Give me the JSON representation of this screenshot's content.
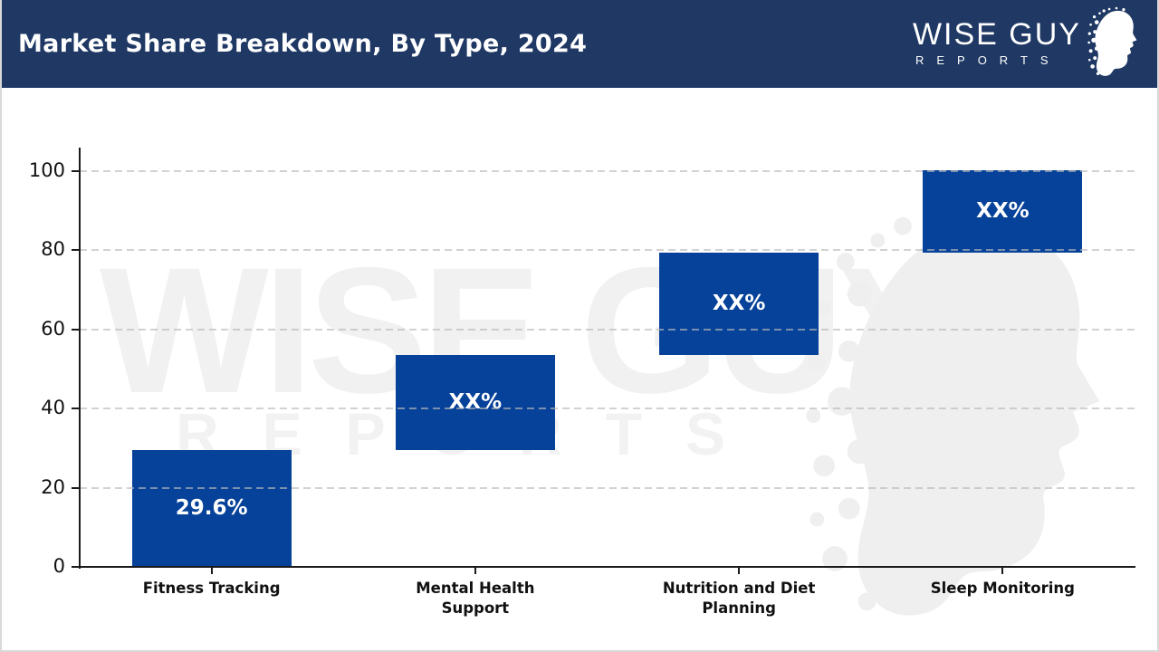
{
  "header": {
    "title": "Market Share Breakdown, By Type, 2024",
    "logo_line1": "WISE GUY",
    "logo_line2": "REPORTS",
    "bg_color": "#1f3864"
  },
  "watermark": {
    "line1": "WISE GUY",
    "line2": "REPORTS"
  },
  "colors": {
    "header_bg": "#1f3864",
    "bar": "#064299",
    "bar_label": "#ffffff",
    "axis": "#1a1a1a",
    "grid": "#bdbdbd",
    "watermark": "#f1f1f1",
    "border": "#d9d9d9"
  },
  "chart_data": {
    "type": "bar",
    "variant": "waterfall (stacked progression of market share)",
    "title": "Market Share Breakdown, By Type, 2024",
    "categories": [
      "Fitness Tracking",
      "Mental Health\nSupport",
      "Nutrition and Diet\nPlanning",
      "Sleep Monitoring"
    ],
    "segments": [
      {
        "category": "Fitness Tracking",
        "start": 0,
        "end": 29.6,
        "label": "29.6%"
      },
      {
        "category": "Mental Health Support",
        "start": 29.6,
        "end": 53.5,
        "label": "XX%"
      },
      {
        "category": "Nutrition and Diet Planning",
        "start": 53.5,
        "end": 79.4,
        "label": "XX%"
      },
      {
        "category": "Sleep Monitoring",
        "start": 79.4,
        "end": 100.2,
        "label": "XX%"
      }
    ],
    "xlabel": "",
    "ylabel": "",
    "yticks": [
      0,
      20,
      40,
      60,
      80,
      100
    ],
    "ylim": [
      0,
      104
    ],
    "grid": "horizontal dashed",
    "legend": "none",
    "bar_color": "#064299",
    "bar_label_color": "#ffffff",
    "watermark": "WISE GUY REPORTS"
  }
}
